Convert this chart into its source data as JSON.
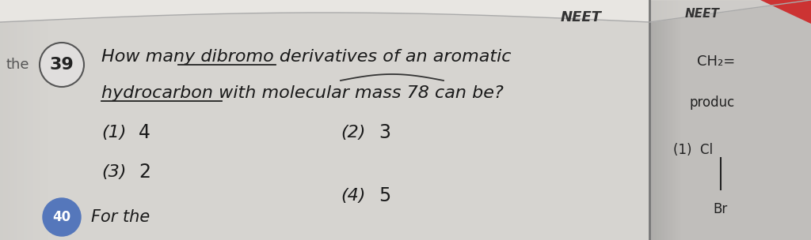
{
  "bg_color": "#b8b8b8",
  "page_left_color": "#d8d8d8",
  "page_right_color": "#c8c8c8",
  "neet_label": "NEET",
  "question_num": "39",
  "line1": "How many dibromo derivatives of an aromatic",
  "line2": "hydrocarbon with molecular mass 78 can be?",
  "opt1_num": "(1)",
  "opt1_val": "4",
  "opt2_num": "(2)",
  "opt2_val": "3",
  "opt3_num": "(3)",
  "opt3_val": "2",
  "opt4_num": "(4)",
  "opt4_val": "5",
  "next_q_num": "40",
  "next_q_text": "For the",
  "right_ch2": "CH₂=",
  "right_produc": "produc",
  "right_1cl": "(1)  Cl",
  "right_br": "Br",
  "text_color": "#1a1a1a",
  "gray_text": "#555555",
  "spine_color": "#aaaaaa",
  "the_text": "the",
  "body_fontsize": 16,
  "opt_fontsize": 16,
  "neet_fontsize": 13,
  "qnum_fontsize": 14
}
